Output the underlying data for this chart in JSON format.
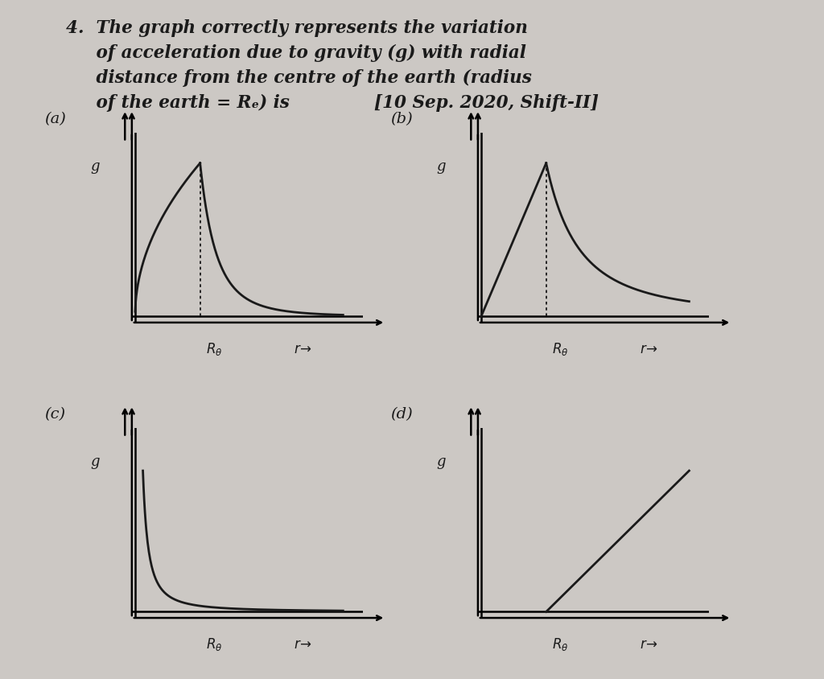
{
  "bg_color": "#ccc8c4",
  "curve_color": "#1a1a1a",
  "text_color": "#1a1a1a",
  "title_lines": [
    "4.  The graph correctly represents the variation",
    "     of acceleration due to gravity (g) with radial",
    "     distance from the centre of the earth (radius",
    "     of the earth = Rₑ) is              [10 Sep. 2020, Shift-II]"
  ],
  "labels": [
    "(a)",
    "(b)",
    "(c)",
    "(d)"
  ]
}
